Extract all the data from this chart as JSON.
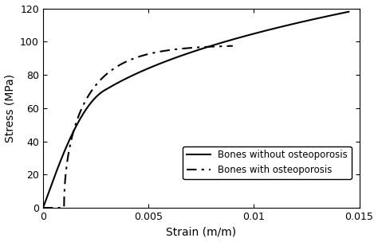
{
  "title": "",
  "xlabel": "Strain (m/m)",
  "ylabel": "Stress (MPa)",
  "xlim": [
    0,
    0.015
  ],
  "ylim": [
    0,
    120
  ],
  "xticks": [
    0,
    0.005,
    0.01,
    0.015
  ],
  "yticks": [
    0,
    20,
    40,
    60,
    80,
    100,
    120
  ],
  "legend": [
    "Bones without osteoporosis",
    "Bones with osteoporosis"
  ],
  "line_color": "#000000",
  "background_color": "#ffffff",
  "line_width": 1.5,
  "font_size": 10
}
